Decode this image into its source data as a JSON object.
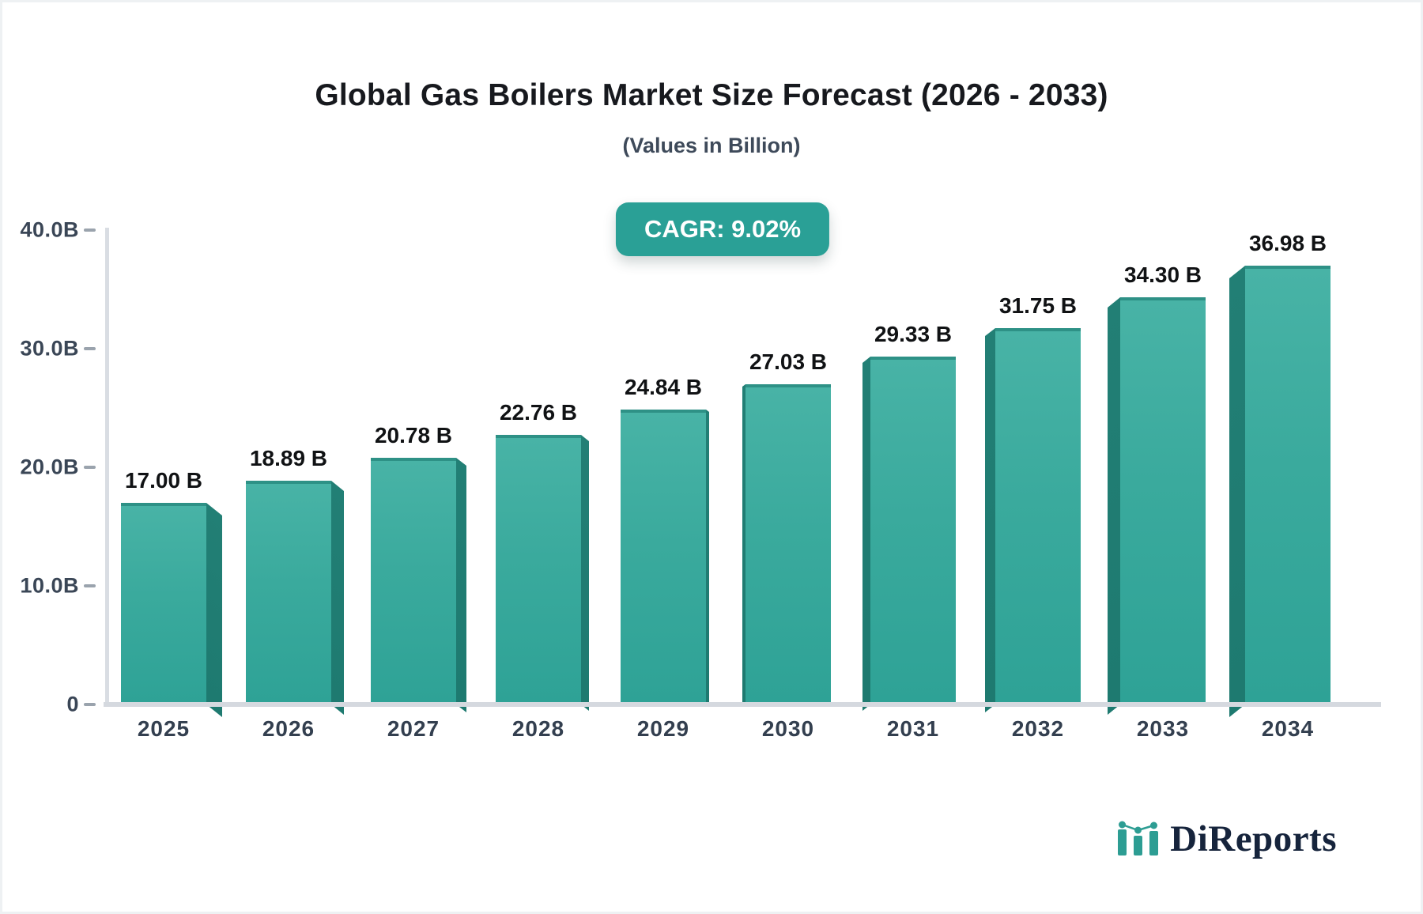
{
  "header": {
    "title": "Global Gas Boilers Market Size Forecast (2026 - 2033)",
    "subtitle": "(Values in Billion)",
    "badge_label": "CAGR: 9.02%"
  },
  "chart_data": {
    "type": "bar",
    "title": "Global Gas Boilers Market Size Forecast (2026 - 2033)",
    "subtitle": "(Values in Billion)",
    "cagr_label": "CAGR: 9.02%",
    "categories": [
      "2025",
      "2026",
      "2027",
      "2028",
      "2029",
      "2030",
      "2031",
      "2032",
      "2033",
      "2034"
    ],
    "values": [
      17.0,
      18.89,
      20.78,
      22.76,
      24.84,
      27.03,
      29.33,
      31.75,
      34.3,
      36.98
    ],
    "value_labels": [
      "17.00 B",
      "18.89 B",
      "20.78 B",
      "22.76 B",
      "24.84 B",
      "27.03 B",
      "29.33 B",
      "31.75 B",
      "34.30 B",
      "36.98 B"
    ],
    "xlabel": "",
    "ylabel": "",
    "ylim": [
      0,
      40
    ],
    "y_ticks": {
      "values": [
        0,
        10,
        20,
        30,
        40
      ],
      "labels": [
        "0",
        "10.0B",
        "20.0B",
        "30.0B",
        "40.0B"
      ]
    },
    "grid": false,
    "legend_position": "none",
    "bar_style": "3d-perspective"
  },
  "colors": {
    "bar_face_top": "#48b3a6",
    "bar_face_bottom": "#2ea296",
    "bar_top_edge": "#2e9186",
    "bar_side": "#1e7a70",
    "axis_line": "#d9dde3",
    "tick_dash": "#9aa3ad",
    "tick_label": "#3a4656",
    "category_label": "#333f4f",
    "value_label": "#101214",
    "title_text": "#17191e",
    "subtitle_text": "#3e4a5a",
    "badge_background": "#2aa096",
    "badge_text": "#ffffff",
    "logo_teal": "#2d9d93",
    "logo_navy": "#16243c"
  },
  "footer": {
    "logo_text": "DiReports",
    "logo_icon": "mini-bar-line-chart"
  }
}
